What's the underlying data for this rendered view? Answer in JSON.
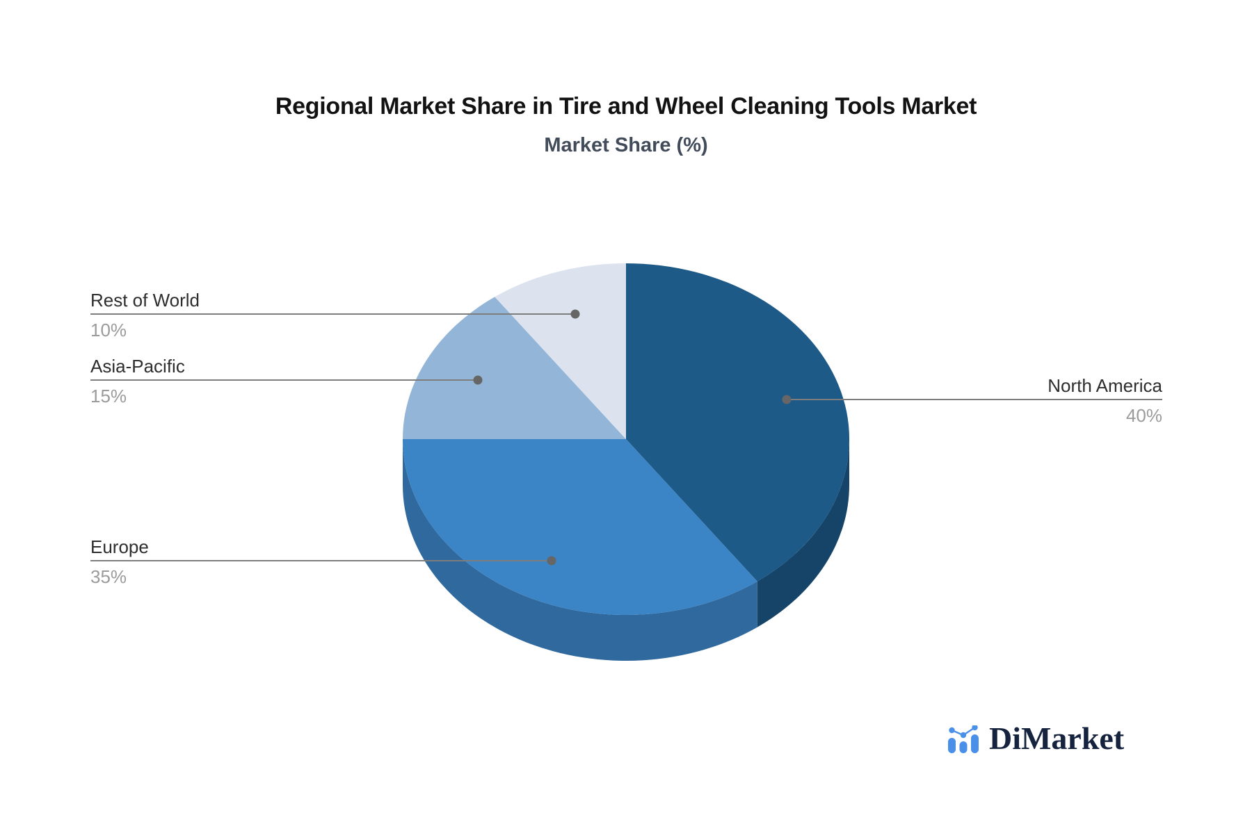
{
  "title": "Regional Market Share in Tire and Wheel Cleaning Tools Market",
  "subtitle": "Market Share (%)",
  "callouts": [
    {
      "id": "north-america",
      "label": "North America",
      "value_label": "40%"
    },
    {
      "id": "europe",
      "label": "Europe",
      "value_label": "35%"
    },
    {
      "id": "asia-pacific",
      "label": "Asia-Pacific",
      "value_label": "15%"
    },
    {
      "id": "rest-of-world",
      "label": "Rest of World",
      "value_label": "10%"
    }
  ],
  "logo": {
    "text": "DiMarket",
    "icon": "bar-chart-trend-icon"
  },
  "colors": {
    "slice_top": [
      "#1d5a87",
      "#3b85c7",
      "#93b5d8",
      "#dce3ee"
    ],
    "slice_side": [
      "#154468",
      "#2f699e",
      "#6e8fb3",
      "#b8c3d4"
    ],
    "leader_line": "#7d7d7d",
    "leader_dot": "#666666",
    "title_text": "#121212",
    "subtitle_text": "#414b5a",
    "label_text": "#2d2d2d",
    "value_text": "#9b9b9b",
    "logo_text": "#15233e",
    "logo_accent": "#4a90e9",
    "background": "#ffffff"
  },
  "chart_data": {
    "type": "pie",
    "title": "Regional Market Share in Tire and Wheel Cleaning Tools Market",
    "subtitle": "Market Share (%)",
    "unit": "%",
    "categories": [
      "North America",
      "Europe",
      "Asia-Pacific",
      "Rest of World"
    ],
    "values": [
      40,
      35,
      15,
      10
    ],
    "start_angle": "12-oclock",
    "direction": "clockwise",
    "style": "3d",
    "labels_position": "callouts",
    "legend": "none"
  }
}
